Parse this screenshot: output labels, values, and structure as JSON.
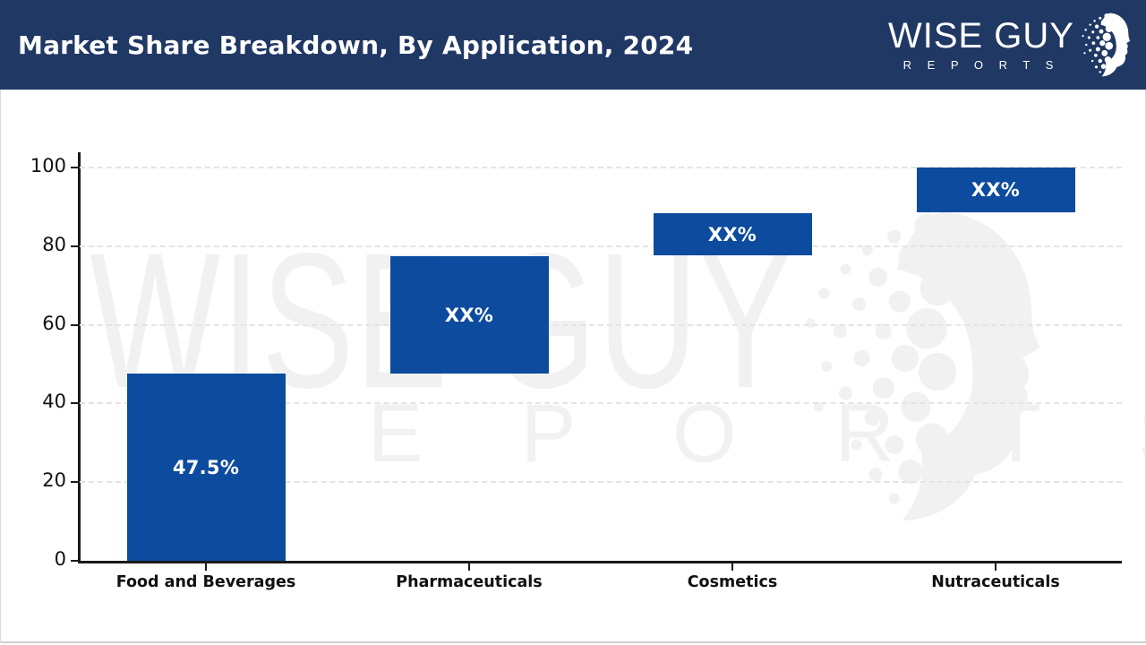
{
  "header": {
    "title": "Market Share Breakdown, By Application, 2024",
    "bg_color": "#203864",
    "text_color": "#ffffff",
    "logo": {
      "line1": "WISE GUY",
      "line2": "R E P O R T S"
    }
  },
  "watermark": {
    "line1": "WISE GUY",
    "line2": "R E P O R T S"
  },
  "chart_data": {
    "type": "bar",
    "subtype": "waterfall-segments",
    "title": "Market Share Breakdown, By Application, 2024",
    "categories": [
      "Food and Beverages",
      "Pharmaceuticals",
      "Cosmetics",
      "Nutraceuticals"
    ],
    "bars": [
      {
        "category": "Food and Beverages",
        "label": "47.5%",
        "start": 0,
        "end": 47.5
      },
      {
        "category": "Pharmaceuticals",
        "label": "XX%",
        "start": 47.5,
        "end": 77.4
      },
      {
        "category": "Cosmetics",
        "label": "XX%",
        "start": 77.7,
        "end": 88.3
      },
      {
        "category": "Nutraceuticals",
        "label": "XX%",
        "start": 88.5,
        "end": 100
      }
    ],
    "yticks": [
      0,
      20,
      40,
      60,
      80,
      100
    ],
    "ylim": [
      0,
      100
    ],
    "xlabel": "",
    "ylabel": "",
    "legend": "none",
    "grid": "horizontal-dashed",
    "bar_color": "#0d4b9e",
    "axis_color": "#1a1a1a",
    "gridline_color": "#e4e4e4"
  }
}
